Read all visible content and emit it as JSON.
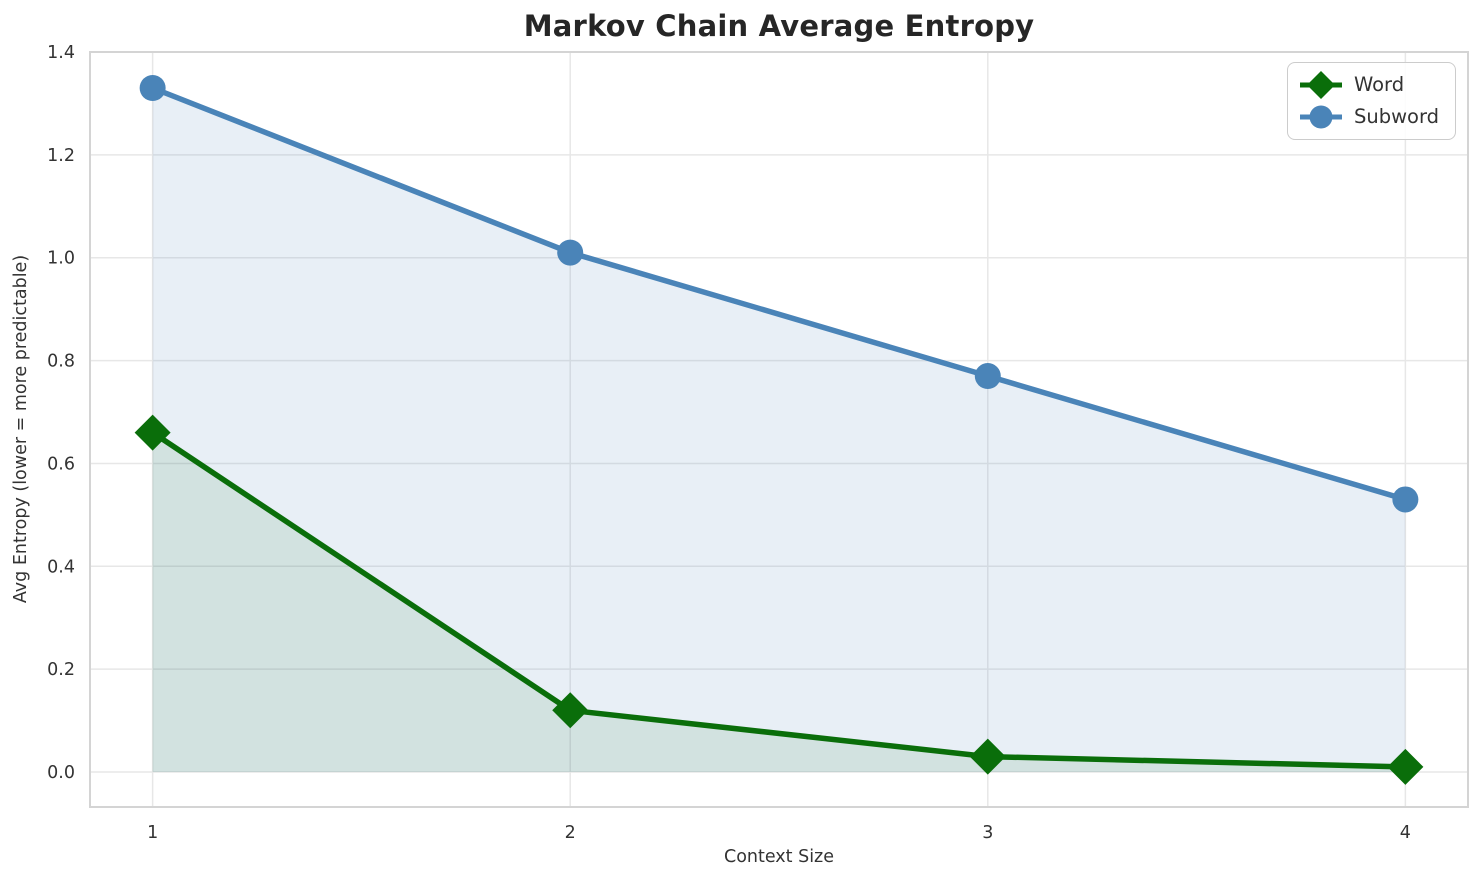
{
  "chart_data": {
    "type": "line",
    "title": "Markov Chain Average Entropy",
    "xlabel": "Context Size",
    "ylabel": "Avg Entropy (lower = more predictable)",
    "x": [
      1,
      2,
      3,
      4
    ],
    "x_tick_labels": [
      "1",
      "2",
      "3",
      "4"
    ],
    "y_ticks": [
      0.0,
      0.2,
      0.4,
      0.6,
      0.8,
      1.0,
      1.2,
      1.4
    ],
    "y_tick_labels": [
      "0.0",
      "0.2",
      "0.4",
      "0.6",
      "0.8",
      "1.0",
      "1.2",
      "1.4"
    ],
    "xlim": [
      0.85,
      4.15
    ],
    "ylim": [
      -0.068,
      1.4
    ],
    "grid": true,
    "legend_position": "upper right",
    "series": [
      {
        "name": "Word",
        "values": [
          0.66,
          0.12,
          0.03,
          0.01
        ],
        "color": "#0a6e0a",
        "marker": "diamond",
        "fill_to_zero": true,
        "fill_opacity": 0.1
      },
      {
        "name": "Subword",
        "values": [
          1.33,
          1.01,
          0.77,
          0.53
        ],
        "color": "#4a84b8",
        "marker": "circle",
        "fill_to_zero": true,
        "fill_opacity": 0.13
      }
    ],
    "style": {
      "grid_color": "#e7e7e7",
      "spine_color": "#d4d4d4",
      "tick_color": "#333333",
      "title_color": "#262626",
      "background": "#ffffff"
    }
  }
}
